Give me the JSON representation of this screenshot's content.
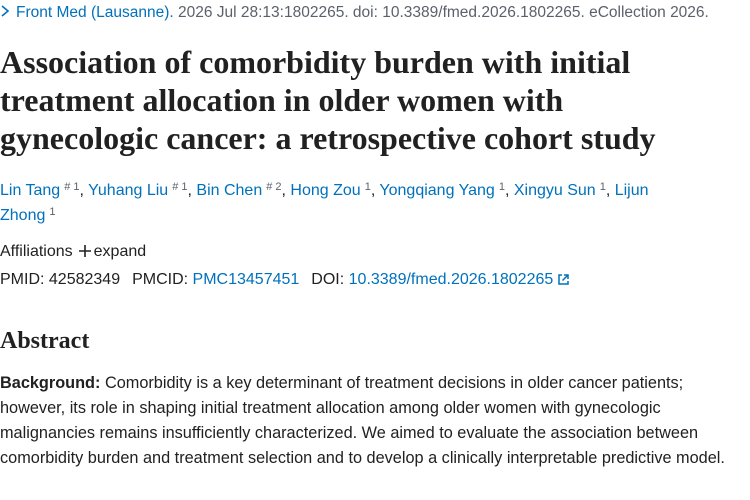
{
  "citation": {
    "journal": "Front Med (Lausanne).",
    "details": " 2026 Jul 28:13:1802265. doi: 10.3389/fmed.2026.1802265. eCollection 2026."
  },
  "title": "Association of comorbidity burden with initial treatment allocation in older women with gynecologic cancer: a retrospective cohort study",
  "authors": {
    "separator": ",",
    "list": [
      {
        "name": "Lin Tang",
        "sup": "# 1"
      },
      {
        "name": "Yuhang Liu",
        "sup": "# 1"
      },
      {
        "name": "Bin Chen",
        "sup": "# 2"
      },
      {
        "name": "Hong Zou",
        "sup": "1"
      },
      {
        "name": "Yongqiang Yang",
        "sup": "1"
      },
      {
        "name": "Xingyu Sun",
        "sup": "1"
      },
      {
        "name": "Lijun Zhong",
        "sup": "1"
      }
    ]
  },
  "affiliations": {
    "label": "Affiliations",
    "toggle": "expand"
  },
  "identifiers": {
    "pmid_label": "PMID:",
    "pmid": "42582349",
    "pmcid_label": "PMCID:",
    "pmcid": "PMC13457451",
    "doi_label": "DOI:",
    "doi": "10.3389/fmed.2026.1802265"
  },
  "abstract": {
    "heading": "Abstract",
    "label": "Background:",
    "text": " Comorbidity is a key determinant of treatment decisions in older cancer patients; however, its role in shaping initial treatment allocation among older women with gynecologic malignancies remains insufficiently characterized. We aimed to evaluate the association between comorbidity burden and treatment selection and to develop a clinically interpretable predictive model."
  }
}
